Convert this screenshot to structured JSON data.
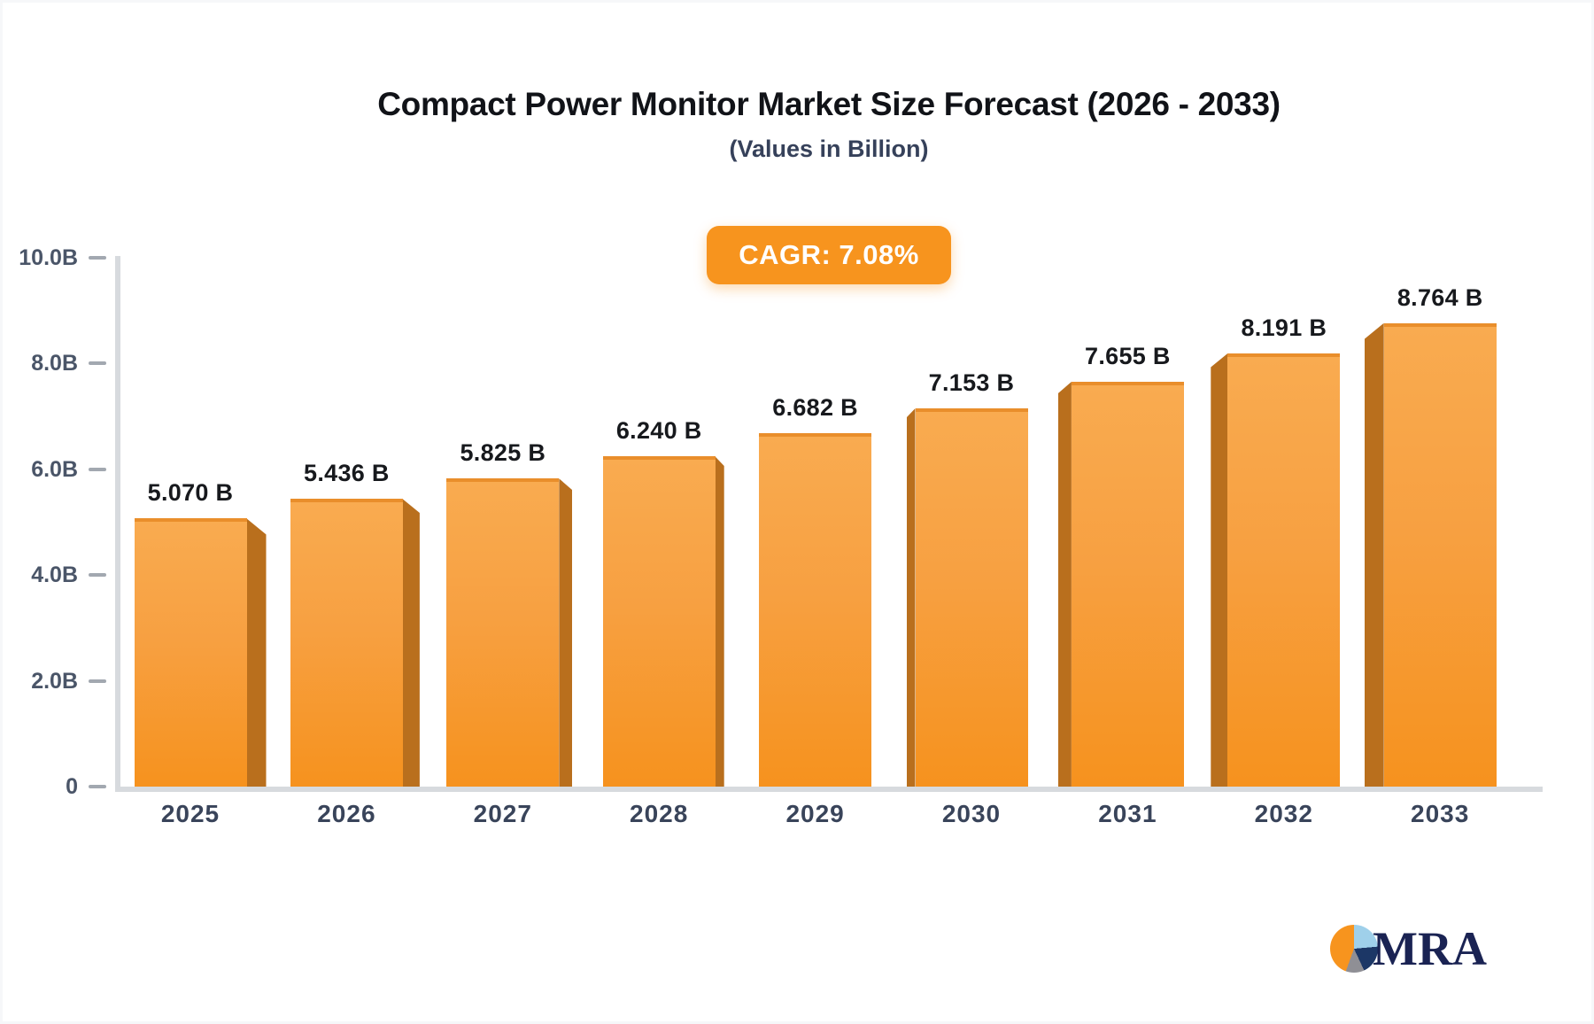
{
  "chart_data": {
    "type": "bar",
    "title": "Compact Power Monitor Market Size Forecast (2026 - 2033)",
    "subtitle": "(Values in Billion)",
    "annotation_badge": "CAGR: 7.08%",
    "categories": [
      "2025",
      "2026",
      "2027",
      "2028",
      "2029",
      "2030",
      "2031",
      "2032",
      "2033"
    ],
    "values": [
      5.07,
      5.436,
      5.825,
      6.24,
      6.682,
      7.153,
      7.655,
      8.191,
      8.764
    ],
    "value_labels": [
      "5.070 B",
      "5.436 B",
      "5.825 B",
      "6.240 B",
      "6.682 B",
      "7.153 B",
      "7.655 B",
      "8.191 B",
      "8.764 B"
    ],
    "xlabel": "",
    "ylabel": "",
    "ylim": [
      0,
      10
    ],
    "yticks": [
      {
        "label": "10.0B",
        "value": 10
      },
      {
        "label": "8.0B",
        "value": 8
      },
      {
        "label": "6.0B",
        "value": 6
      },
      {
        "label": "4.0B",
        "value": 4
      },
      {
        "label": "2.0B",
        "value": 2
      },
      {
        "label": "0",
        "value": 0
      }
    ],
    "grid": false,
    "legend_position": "none",
    "bar_style": "3d-orange"
  },
  "logo": {
    "text": "MRA"
  },
  "colors": {
    "accent": "#F7941E",
    "bar_top": "#F9AB50",
    "bar_mid": "#F7A041",
    "bar_bottom": "#F6921E",
    "bar_side": "#B96F1D",
    "bar_edge": "#E98E2B",
    "axis": "#D7DADE",
    "tick": "#A2A8B0",
    "slate": "#39445A",
    "ylab": "#4A5568",
    "logo_navy": "#1A2353",
    "logo_navy_slice": "#1C3766",
    "logo_blue": "#9FD0EA",
    "logo_gray": "#8F8F95"
  }
}
